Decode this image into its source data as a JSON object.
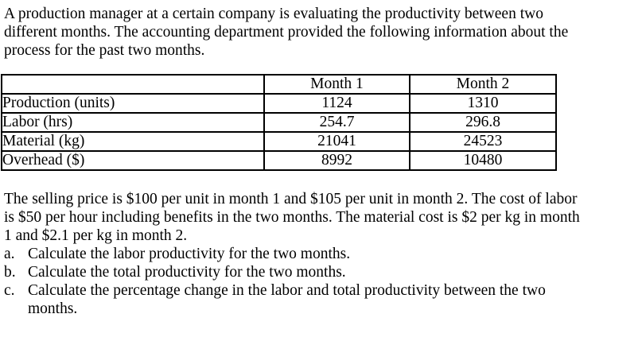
{
  "doc": {
    "intro_lines": [
      "A production manager at a certain company is evaluating the productivity between two",
      "different months. The accounting department provided the following information about the",
      "process for the past two months."
    ],
    "table": {
      "header": {
        "month1": "Month 1",
        "month2": "Month 2"
      },
      "rows": [
        {
          "label": "Production (units)",
          "month1": "1124",
          "month2": "1310"
        },
        {
          "label": "Labor (hrs)",
          "month1": "254.7",
          "month2": "296.8"
        },
        {
          "label": "Material (kg)",
          "month1": "21041",
          "month2": "24523"
        },
        {
          "label": "Overhead ($)",
          "month1": "8992",
          "month2": "10480"
        }
      ]
    },
    "details_lines": [
      "The selling price is $100 per unit in month 1 and $105 per unit in month 2. The cost of labor",
      "is $50 per hour including benefits in the two months. The material cost is $2 per kg in month",
      "1 and $2.1 per kg in month 2."
    ],
    "questions": [
      {
        "marker": "a.",
        "text": "Calculate the labor productivity for the two months."
      },
      {
        "marker": "b.",
        "text": "Calculate the total productivity for the two months."
      },
      {
        "marker": "c.",
        "text": "Calculate the percentage change in the labor and total productivity between the two months."
      }
    ]
  }
}
